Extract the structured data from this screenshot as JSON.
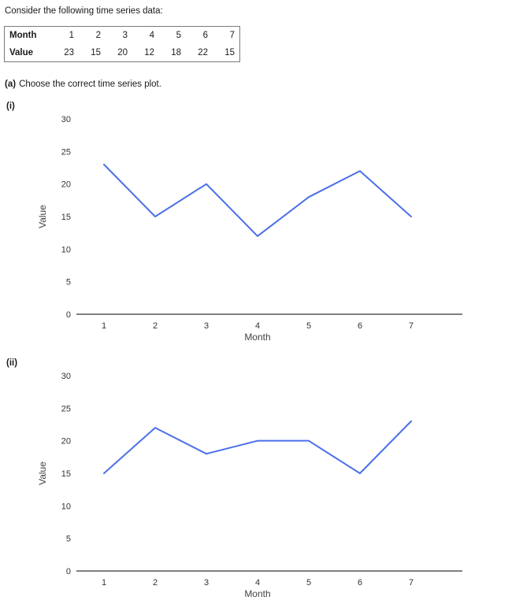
{
  "intro": "Consider the following time series data:",
  "table": {
    "rows": [
      {
        "label": "Month",
        "values": [
          "1",
          "2",
          "3",
          "4",
          "5",
          "6",
          "7"
        ]
      },
      {
        "label": "Value",
        "values": [
          "23",
          "15",
          "20",
          "12",
          "18",
          "22",
          "15"
        ]
      }
    ]
  },
  "question": {
    "part": "(a)",
    "text": "Choose the correct time series plot."
  },
  "options": [
    {
      "label": "(i)"
    },
    {
      "label": "(ii)"
    }
  ],
  "colors": {
    "line": "#4A6FE8",
    "axis": "#555555"
  },
  "chart_data": [
    {
      "type": "line",
      "title": "",
      "x": [
        1,
        2,
        3,
        4,
        5,
        6,
        7
      ],
      "values": [
        23,
        15,
        20,
        12,
        18,
        22,
        15
      ],
      "xlabel": "Month",
      "ylabel": "Value",
      "ylim": [
        0,
        30
      ],
      "yticks": [
        0,
        5,
        10,
        15,
        20,
        25,
        30
      ],
      "xticks": [
        1,
        2,
        3,
        4,
        5,
        6,
        7
      ],
      "grid": false,
      "legend_position": "none",
      "line_color": "#4A6FE8"
    },
    {
      "type": "line",
      "title": "",
      "x": [
        1,
        2,
        3,
        4,
        5,
        6,
        7
      ],
      "values": [
        15,
        22,
        18,
        20,
        20,
        15,
        23
      ],
      "xlabel": "Month",
      "ylabel": "Value",
      "ylim": [
        0,
        30
      ],
      "yticks": [
        0,
        5,
        10,
        15,
        20,
        25,
        30
      ],
      "xticks": [
        1,
        2,
        3,
        4,
        5,
        6,
        7
      ],
      "grid": false,
      "legend_position": "none",
      "line_color": "#4A6FE8"
    }
  ]
}
